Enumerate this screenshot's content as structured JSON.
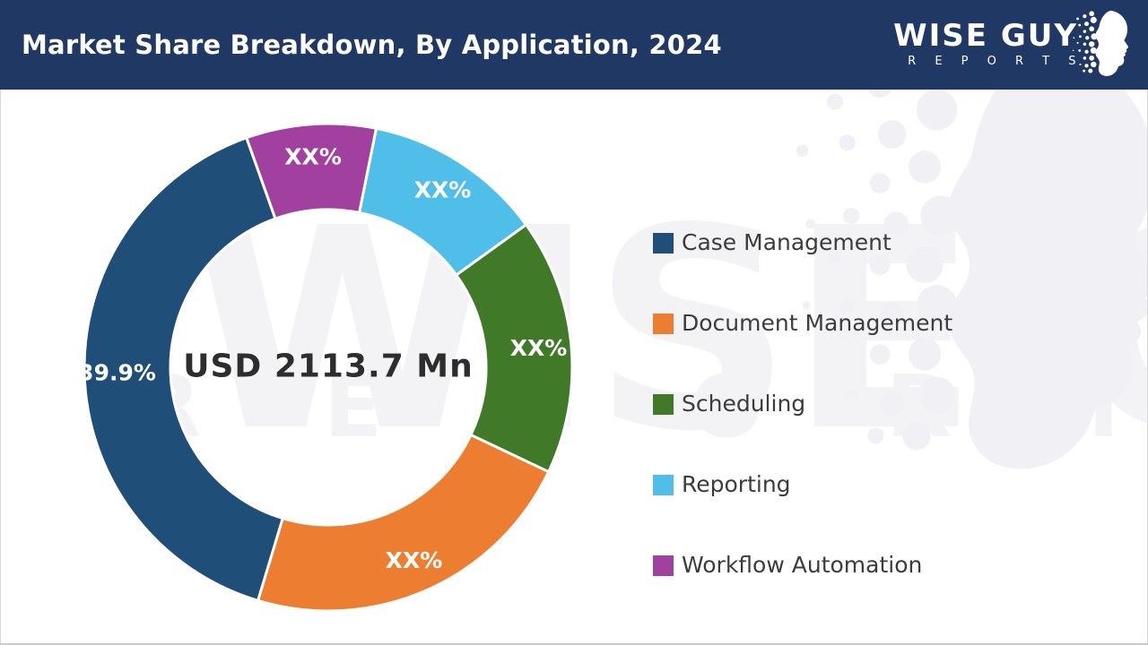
{
  "header": {
    "title": "Market Share Breakdown, By Application, 2024",
    "logo": {
      "line1": "WISE GUY",
      "line2": "R E P O R T S"
    }
  },
  "watermark": {
    "line1": "WISE GUY",
    "line2": "R E P O R T S"
  },
  "chart_data": {
    "type": "pie",
    "donut": true,
    "title": "Market Share Breakdown, By Application, 2024",
    "center_label": "USD 2113.7 Mn",
    "units": "percent of market share",
    "start_angle_deg": -19.6,
    "direction": "clockwise",
    "legend_position": "right",
    "segments": [
      {
        "name": "Workflow Automation",
        "value": 8.6,
        "label": "XX%",
        "color": "#A1409E"
      },
      {
        "name": "Reporting",
        "value": 11.9,
        "label": "XX%",
        "color": "#4FBFE9"
      },
      {
        "name": "Scheduling",
        "value": 17.0,
        "label": "XX%",
        "color": "#407A28"
      },
      {
        "name": "Document Management",
        "value": 22.6,
        "label": "XX%",
        "color": "#ED7D31"
      },
      {
        "name": "Case Management",
        "value": 39.9,
        "label": "39.9%",
        "color": "#1F4E79"
      }
    ]
  },
  "legend": {
    "items": [
      {
        "label": "Case Management",
        "color": "#1F4E79"
      },
      {
        "label": "Document Management",
        "color": "#ED7D31"
      },
      {
        "label": "Scheduling",
        "color": "#407A28"
      },
      {
        "label": "Reporting",
        "color": "#4FBFE9"
      },
      {
        "label": "Workflow Automation",
        "color": "#A1409E"
      }
    ]
  },
  "colors": {
    "header_bg": "#203864",
    "title_text": "#ffffff",
    "center_text": "#2d2d2d",
    "legend_text": "#3c3c3c",
    "segment_label_text": "#ffffff",
    "watermark": "#f3f3f6",
    "bottom_line": "#c9c9c9"
  }
}
